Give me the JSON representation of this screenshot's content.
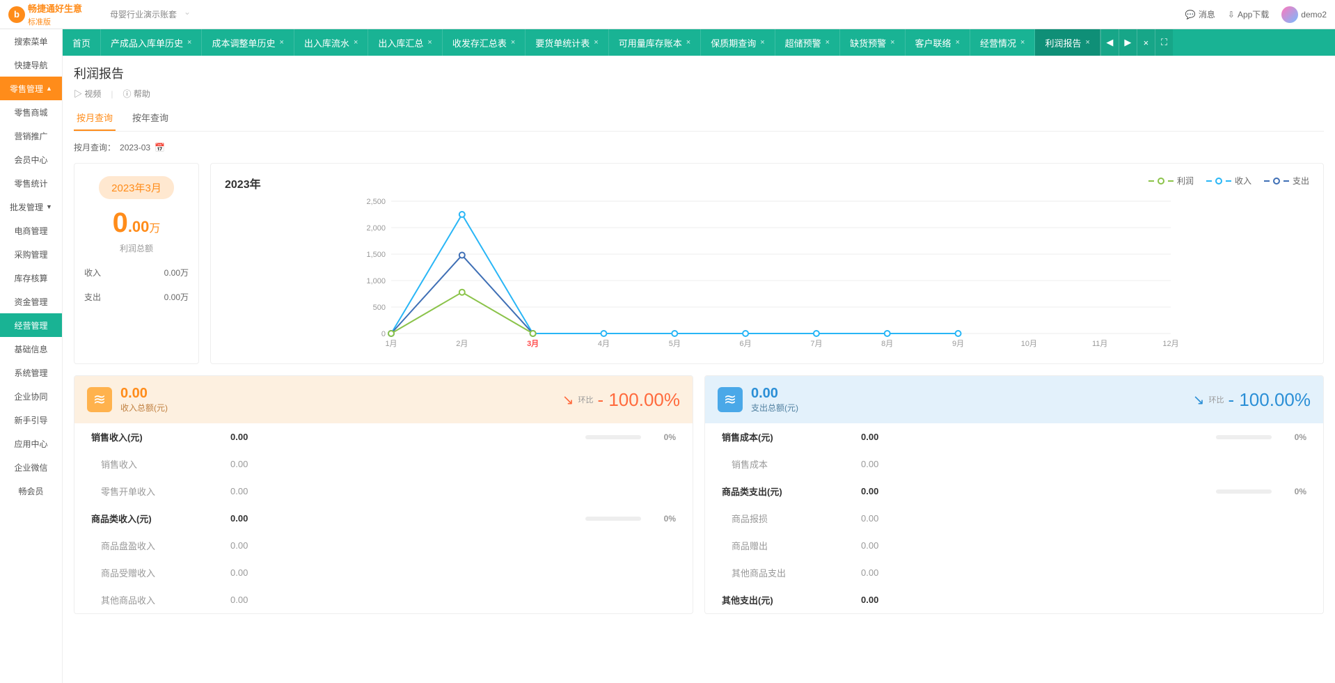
{
  "logo": {
    "brand": "畅捷通好生意",
    "edition": "标准版"
  },
  "accountSelector": "母婴行业演示账套",
  "topbarRight": {
    "messages": "消息",
    "appDownload": "App下载",
    "user": "demo2"
  },
  "sidebar": {
    "items": [
      {
        "label": "搜索菜单",
        "active": ""
      },
      {
        "label": "快捷导航",
        "active": ""
      },
      {
        "label": "零售管理",
        "active": "orange",
        "caret": "▲"
      },
      {
        "label": "零售商城",
        "active": ""
      },
      {
        "label": "营销推广",
        "active": ""
      },
      {
        "label": "会员中心",
        "active": ""
      },
      {
        "label": "零售统计",
        "active": ""
      },
      {
        "label": "批发管理",
        "active": "",
        "caret": "▼"
      },
      {
        "label": "电商管理",
        "active": ""
      },
      {
        "label": "采购管理",
        "active": ""
      },
      {
        "label": "库存核算",
        "active": ""
      },
      {
        "label": "资金管理",
        "active": ""
      },
      {
        "label": "经营管理",
        "active": "teal"
      },
      {
        "label": "基础信息",
        "active": ""
      },
      {
        "label": "系统管理",
        "active": ""
      },
      {
        "label": "企业协同",
        "active": ""
      },
      {
        "label": "新手引导",
        "active": ""
      },
      {
        "label": "应用中心",
        "active": ""
      },
      {
        "label": "企业微信",
        "active": ""
      },
      {
        "label": "畅会员",
        "active": ""
      }
    ]
  },
  "tabs": [
    {
      "label": "首页",
      "closable": false
    },
    {
      "label": "产成品入库单历史",
      "closable": true
    },
    {
      "label": "成本调整单历史",
      "closable": true
    },
    {
      "label": "出入库流水",
      "closable": true
    },
    {
      "label": "出入库汇总",
      "closable": true
    },
    {
      "label": "收发存汇总表",
      "closable": true
    },
    {
      "label": "要货单统计表",
      "closable": true
    },
    {
      "label": "可用量库存账本",
      "closable": true
    },
    {
      "label": "保质期查询",
      "closable": true
    },
    {
      "label": "超储预警",
      "closable": true
    },
    {
      "label": "缺货预警",
      "closable": true
    },
    {
      "label": "客户联络",
      "closable": true
    },
    {
      "label": "经营情况",
      "closable": true
    },
    {
      "label": "利润报告",
      "closable": true,
      "active": true
    }
  ],
  "page": {
    "title": "利润报告",
    "links": {
      "video": "视频",
      "help": "帮助"
    },
    "subtabs": {
      "monthly": "按月查询",
      "yearly": "按年查询"
    },
    "filter": {
      "label": "按月查询：",
      "value": "2023-03"
    }
  },
  "summary": {
    "pill": "2023年3月",
    "bigValue": "0",
    "bigFrac": ".00",
    "bigUnit": "万",
    "bigLabel": "利润总额",
    "rows": [
      {
        "label": "收入",
        "value": "0.00万"
      },
      {
        "label": "支出",
        "value": "0.00万"
      }
    ]
  },
  "chart": {
    "title": "2023年",
    "legend": [
      {
        "label": "利润",
        "color": "#8bc34a"
      },
      {
        "label": "收入",
        "color": "#29b6f6"
      },
      {
        "label": "支出",
        "color": "#3f6fb5"
      }
    ],
    "yTicks": [
      "0",
      "500",
      "1,000",
      "1,500",
      "2,000",
      "2,500"
    ],
    "yMax": 2500,
    "xLabels": [
      "1月",
      "2月",
      "3月",
      "4月",
      "5月",
      "6月",
      "7月",
      "8月",
      "9月",
      "10月",
      "11月",
      "12月"
    ],
    "highlightMonth": "3月",
    "series": {
      "profit": [
        0,
        780,
        0,
        0,
        0,
        0,
        0,
        0,
        0,
        0,
        0,
        0
      ],
      "income": [
        0,
        2250,
        0,
        0,
        0,
        0,
        0,
        0,
        0,
        0,
        0,
        0
      ],
      "expense": [
        0,
        1480,
        0,
        0,
        0,
        0,
        0,
        0,
        0,
        0,
        0,
        0
      ]
    },
    "colors": {
      "profit": "#8bc34a",
      "income": "#29b6f6",
      "expense": "#3f6fb5",
      "grid": "#eeeeee",
      "axis": "#cccccc"
    }
  },
  "panes": {
    "income": {
      "headValue": "0.00",
      "headLabel": "收入总额(元)",
      "huanbi": "环比",
      "pct": "- 100.00%",
      "rows": [
        {
          "label": "销售收入(元)",
          "value": "0.00",
          "bold": true,
          "pct": "0%"
        },
        {
          "label": "销售收入",
          "value": "0.00",
          "sub": true
        },
        {
          "label": "零售开单收入",
          "value": "0.00",
          "sub": true
        },
        {
          "label": "商品类收入(元)",
          "value": "0.00",
          "bold": true,
          "pct": "0%"
        },
        {
          "label": "商品盘盈收入",
          "value": "0.00",
          "sub": true
        },
        {
          "label": "商品受赠收入",
          "value": "0.00",
          "sub": true
        },
        {
          "label": "其他商品收入",
          "value": "0.00",
          "sub": true
        }
      ]
    },
    "expense": {
      "headValue": "0.00",
      "headLabel": "支出总额(元)",
      "huanbi": "环比",
      "pct": "- 100.00%",
      "rows": [
        {
          "label": "销售成本(元)",
          "value": "0.00",
          "bold": true,
          "pct": "0%"
        },
        {
          "label": "销售成本",
          "value": "0.00",
          "sub": true
        },
        {
          "label": "商品类支出(元)",
          "value": "0.00",
          "bold": true,
          "pct": "0%"
        },
        {
          "label": "商品报损",
          "value": "0.00",
          "sub": true
        },
        {
          "label": "商品赠出",
          "value": "0.00",
          "sub": true
        },
        {
          "label": "其他商品支出",
          "value": "0.00",
          "sub": true
        },
        {
          "label": "其他支出(元)",
          "value": "0.00",
          "bold": true
        }
      ]
    }
  }
}
